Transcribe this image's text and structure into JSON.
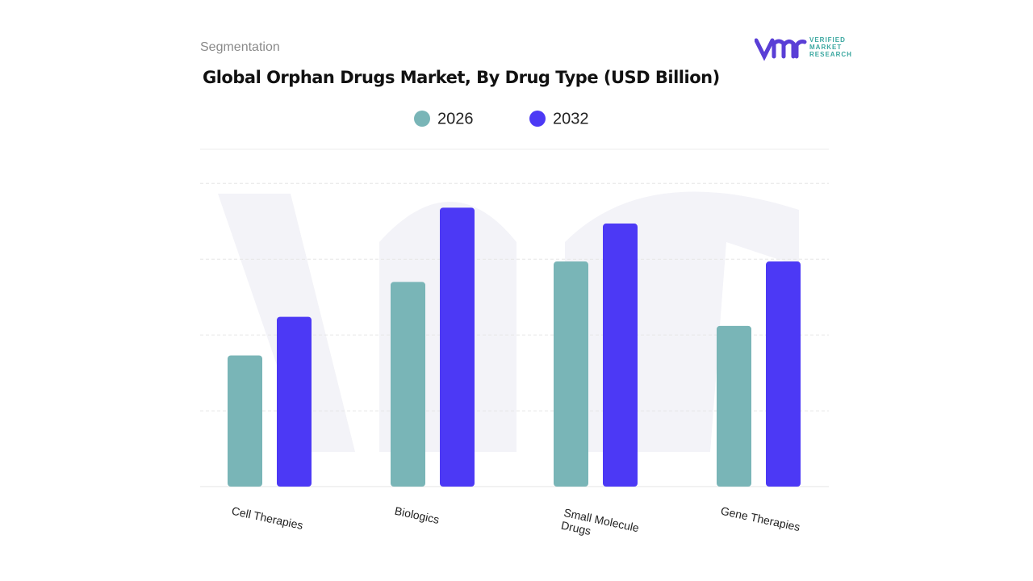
{
  "header": {
    "section": "Segmentation",
    "brand": [
      "VERIFIED",
      "MARKET",
      "RESEARCH"
    ]
  },
  "chart_data": {
    "type": "bar",
    "title": "Global Orphan Drugs Market, By Drug Type (USD Billion)",
    "categories": [
      "Cell Therapies",
      "Biologics",
      "Small Molecule Drugs",
      "Gene Therapies"
    ],
    "series": [
      {
        "name": "2026",
        "color": "#79b5b7",
        "values": [
          1.73,
          2.7,
          2.97,
          2.12
        ]
      },
      {
        "name": "2032",
        "color": "#4c39f5",
        "values": [
          2.24,
          3.68,
          3.47,
          2.97
        ]
      }
    ],
    "ylim": [
      0,
      4.45
    ],
    "yticks": [
      0,
      1,
      2,
      3,
      4
    ],
    "grid": true
  }
}
